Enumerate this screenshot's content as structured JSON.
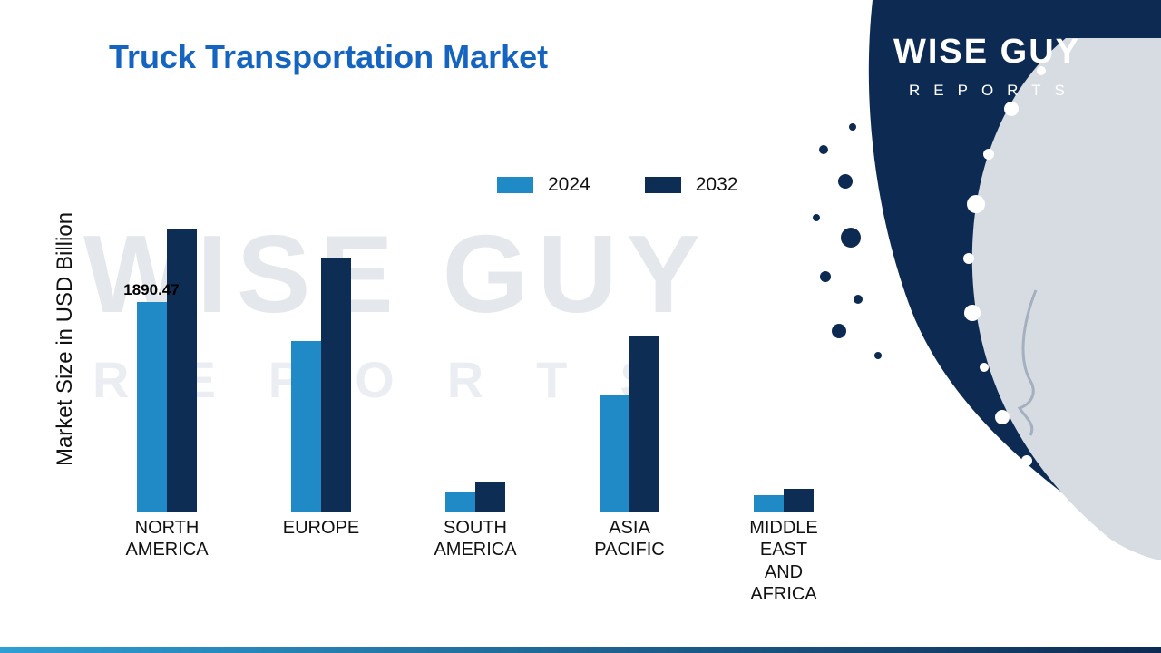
{
  "page": {
    "title": "Truck Transportation Market"
  },
  "logo": {
    "name": "WISE GUY",
    "tagline": "REPORTS"
  },
  "watermark": {
    "line1": "WISE GUY",
    "line2": "REPORTS"
  },
  "colors": {
    "title": "#1565c0",
    "logo_background": "#0d2b52",
    "accent_2024": "#1f8ac6",
    "accent_2032": "#0d2d55",
    "bottom_bar_gradient_start": "#2f9fd4",
    "bottom_bar_gradient_end": "#0d2b52"
  },
  "chart_data": {
    "type": "bar",
    "title": "Truck Transportation Market",
    "ylabel": "Market Size in USD Billion",
    "xlabel": "",
    "categories": [
      "NORTH AMERICA",
      "EUROPE",
      "SOUTH AMERICA",
      "ASIA PACIFIC",
      "MIDDLE EAST AND AFRICA"
    ],
    "label_lines": [
      [
        "NORTH",
        "AMERICA"
      ],
      [
        "EUROPE"
      ],
      [
        "SOUTH",
        "AMERICA"
      ],
      [
        "ASIA",
        "PACIFIC"
      ],
      [
        "MIDDLE",
        "EAST",
        "AND",
        "AFRICA"
      ]
    ],
    "series": [
      {
        "name": "2024",
        "color": "#1f8ac6",
        "values": [
          1890.47,
          1540,
          190,
          1050,
          155
        ]
      },
      {
        "name": "2032",
        "color": "#0d2d55",
        "values": [
          2550,
          2280,
          280,
          1580,
          210
        ]
      }
    ],
    "annotations": [
      {
        "text": "1890.47",
        "series": "2024",
        "category": "NORTH AMERICA"
      }
    ],
    "ylim": [
      0,
      2550
    ],
    "grid": false,
    "legend_position": "top"
  }
}
